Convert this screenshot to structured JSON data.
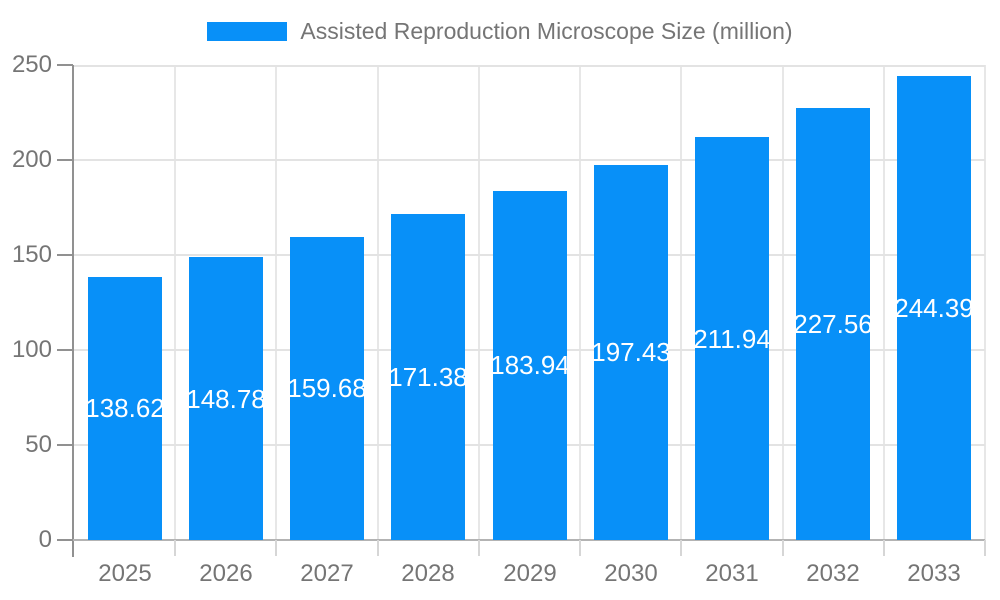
{
  "legend": {
    "label": "Assisted Reproduction Microscope Size (million)",
    "swatch_color": "#0890f8"
  },
  "chart_data": {
    "type": "bar",
    "title": "Assisted Reproduction Microscope Size (million)",
    "categories": [
      "2025",
      "2026",
      "2027",
      "2028",
      "2029",
      "2030",
      "2031",
      "2032",
      "2033"
    ],
    "values": [
      138.62,
      148.78,
      159.68,
      171.38,
      183.94,
      197.43,
      211.94,
      227.56,
      244.39
    ],
    "xlabel": "",
    "ylabel": "",
    "ylim": [
      0,
      250
    ],
    "y_ticks": [
      0,
      50,
      100,
      150,
      200,
      250
    ],
    "grid": true,
    "legend_position": "top",
    "bar_color": "#0890f8",
    "value_label_color": "#ffffff",
    "axis_label_color": "#757575",
    "grid_color": "#e3e3e3",
    "axis_line_color": "#919191",
    "zero_line_color": "#b3b3b3",
    "background_color": "#ffffff"
  }
}
